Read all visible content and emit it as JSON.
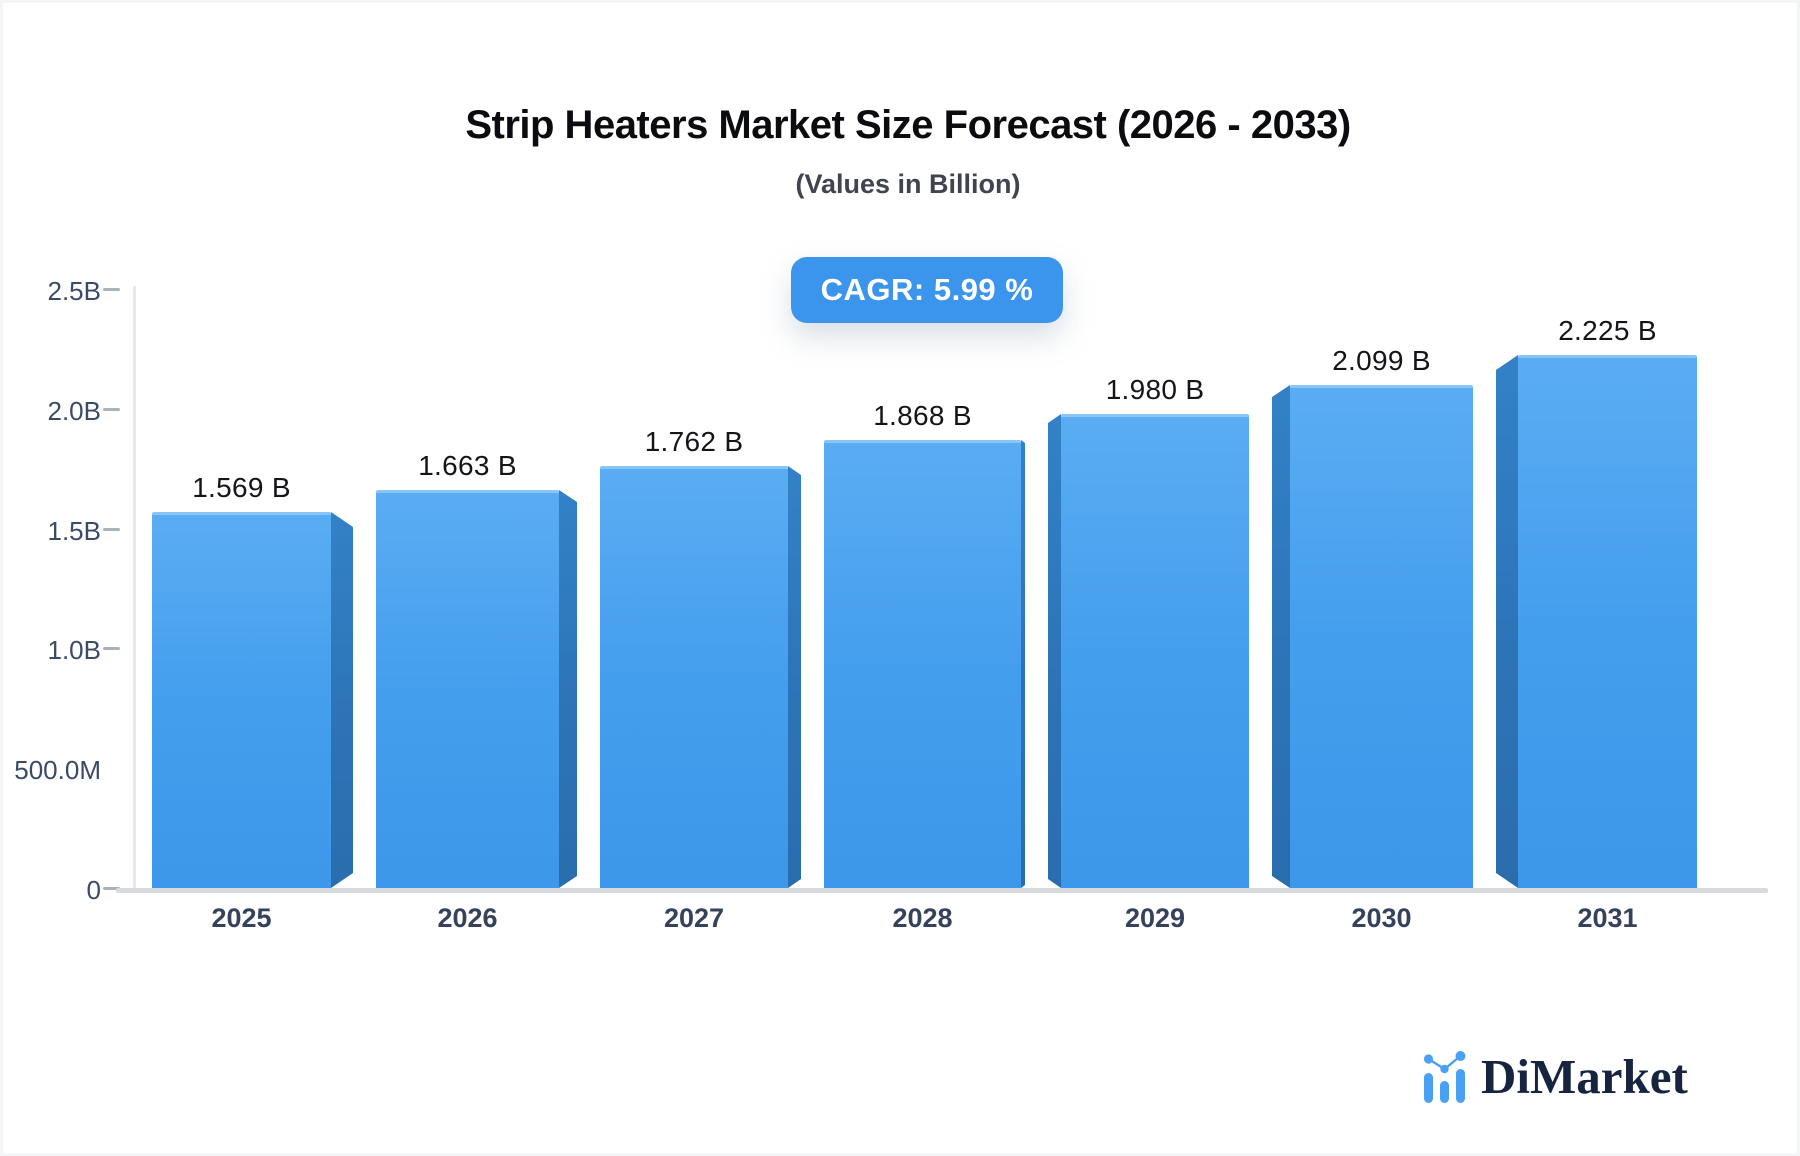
{
  "title": "Strip Heaters Market Size Forecast (2026 - 2033)",
  "subtitle": "(Values in Billion)",
  "cagr_badge_label": "CAGR: 5.99 %",
  "logo": {
    "name": "DiMarket",
    "icon": "bar-chart-sparkline-icon"
  },
  "chart_data": {
    "type": "bar",
    "title": "Strip Heaters Market Size Forecast (2026 - 2033)",
    "subtitle": "(Values in Billion)",
    "cagr": "5.99%",
    "categories": [
      "2025",
      "2026",
      "2027",
      "2028",
      "2029",
      "2030",
      "2031"
    ],
    "values": [
      1.569,
      1.663,
      1.762,
      1.868,
      1.98,
      2.099,
      2.225
    ],
    "value_labels": [
      "1.569 B",
      "1.663 B",
      "1.762 B",
      "1.868 B",
      "1.980 B",
      "2.099 B",
      "2.225 B"
    ],
    "unit": "Billion",
    "ylim": [
      0,
      2.5
    ],
    "y_ticks": [
      {
        "label": "2.5B",
        "value": 2.5,
        "tick": true
      },
      {
        "label": "2.0B",
        "value": 2.0,
        "tick": true
      },
      {
        "label": "1.5B",
        "value": 1.5,
        "tick": true
      },
      {
        "label": "1.0B",
        "value": 1.0,
        "tick": true
      },
      {
        "label": "500.0M",
        "value": 0.5,
        "tick": false
      },
      {
        "label": "0",
        "value": 0.0,
        "tick": true
      }
    ],
    "grid": false,
    "legend": "none",
    "bar_front_color_top": "#5aadf2",
    "bar_front_color_bottom": "#3d97ea",
    "bar_side_color": "#2d74b7",
    "accent_color": "#3b95ec",
    "label_color": "#3b4a66"
  }
}
